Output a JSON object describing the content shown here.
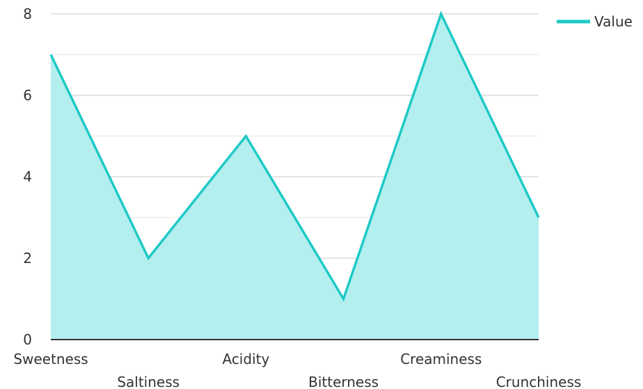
{
  "chart_data": {
    "type": "area",
    "categories": [
      "Sweetness",
      "Saltiness",
      "Acidity",
      "Bitterness",
      "Creaminess",
      "Crunchiness"
    ],
    "series": [
      {
        "name": "Value",
        "values": [
          7,
          2,
          5,
          1,
          8,
          3
        ]
      }
    ],
    "ylim": [
      0,
      8
    ],
    "yticks": [
      0,
      2,
      4,
      6,
      8
    ],
    "minor_yticks": [
      1,
      3,
      5,
      7
    ],
    "grid": true,
    "legend": {
      "position": "top-right"
    },
    "colors": {
      "line": "#1ec9c6",
      "fill": "#b3efee",
      "grid_major": "#c8c8c8",
      "grid_minor": "#e6e6e6",
      "axis": "#333333"
    }
  }
}
